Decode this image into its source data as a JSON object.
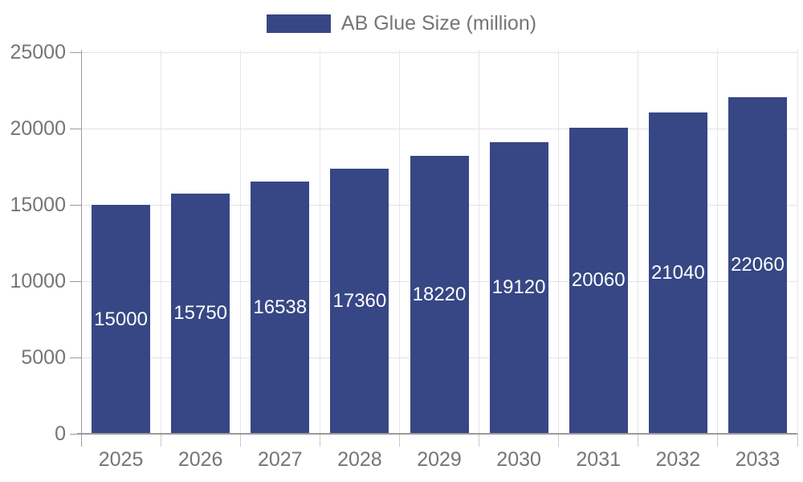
{
  "chart_data": {
    "type": "bar",
    "categories": [
      "2025",
      "2026",
      "2027",
      "2028",
      "2029",
      "2030",
      "2031",
      "2032",
      "2033"
    ],
    "series": [
      {
        "name": "AB Glue Size (million)",
        "values": [
          15000,
          15750,
          16538,
          17360,
          18220,
          19120,
          20060,
          21040,
          22060
        ]
      }
    ],
    "title": "",
    "xlabel": "",
    "ylabel": "",
    "ylim": [
      0,
      25000
    ],
    "yticks": [
      0,
      5000,
      10000,
      15000,
      20000,
      25000
    ],
    "grid": true,
    "legend_position": "top-center",
    "data_labels": "inside-center",
    "colors": {
      "bar": "#374785",
      "axis_text": "#757575",
      "data_label": "#ffffff",
      "h_gridline": "#e3e3e6",
      "v_gridline": "#e6e6ea",
      "axis_line": "#9a9a9a",
      "tick": "#c9c9ce",
      "background": "#ffffff"
    }
  }
}
